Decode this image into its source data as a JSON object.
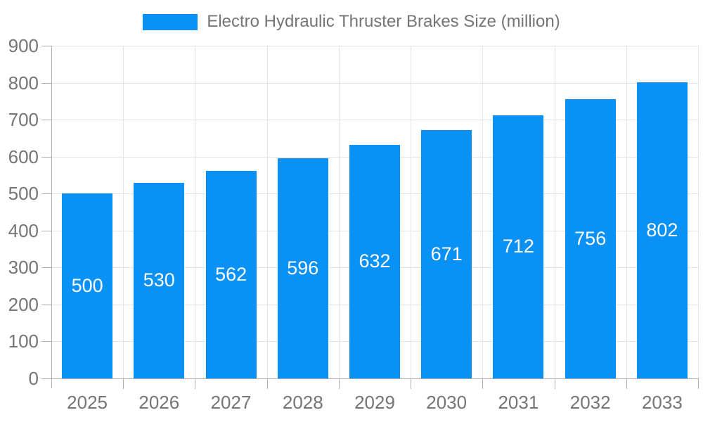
{
  "colors": {
    "bar_color": "#0A91F5",
    "grid_color": "#E4E4E4",
    "axis_color": "#AFAFAF",
    "text_color": "#757575",
    "bar_label_color": "#FFFFFF",
    "background": "#FFFFFF"
  },
  "chart_data": {
    "type": "bar",
    "title": "Electro Hydraulic Thruster Brakes Size (million)",
    "categories": [
      "2025",
      "2026",
      "2027",
      "2028",
      "2029",
      "2030",
      "2031",
      "2032",
      "2033"
    ],
    "values": [
      500,
      530,
      562,
      596,
      632,
      671,
      712,
      756,
      802
    ],
    "xlabel": "",
    "ylabel": "",
    "ylim": [
      0,
      900
    ],
    "y_tick_step": 100,
    "grid": true,
    "legend_position": "top",
    "value_labels": "centered-inside-bars"
  }
}
